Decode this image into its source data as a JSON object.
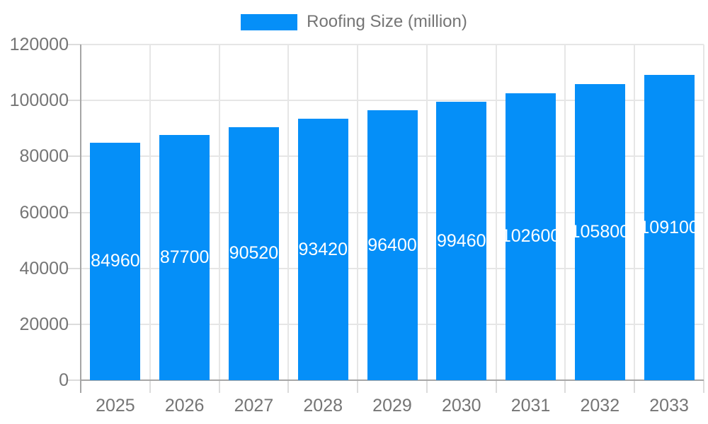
{
  "legend": {
    "label": "Roofing Size (million)"
  },
  "chart_data": {
    "type": "bar",
    "title": "",
    "xlabel": "",
    "ylabel": "",
    "legend_entries": [
      "Roofing Size (million)"
    ],
    "legend_position": "top-center",
    "categories": [
      "2025",
      "2026",
      "2027",
      "2028",
      "2029",
      "2030",
      "2031",
      "2032",
      "2033"
    ],
    "series": [
      {
        "name": "Roofing Size (million)",
        "values": [
          84960,
          87700,
          90520,
          93420,
          96400,
          99460,
          102600,
          105800,
          109100
        ]
      }
    ],
    "data_labels": [
      "84960",
      "87700",
      "90520",
      "93420",
      "96400",
      "99460",
      "102600",
      "105800",
      "109100"
    ],
    "data_label_placement": "inside-center",
    "ylim": [
      0,
      120000
    ],
    "yticks": [
      0,
      20000,
      40000,
      60000,
      80000,
      100000,
      120000
    ],
    "ytick_labels": [
      "0",
      "20000",
      "40000",
      "60000",
      "80000",
      "100000",
      "120000"
    ],
    "grid": "horizontal and vertical gridlines on"
  },
  "colors": {
    "bar": "#058FF8",
    "axis_text": "#757575",
    "data_label_text": "#FFFFFF",
    "gridline": "#E6E6E6",
    "axis_line": "#A6A6A6",
    "tick": "#DCDCDC",
    "background": "#FFFFFF"
  }
}
